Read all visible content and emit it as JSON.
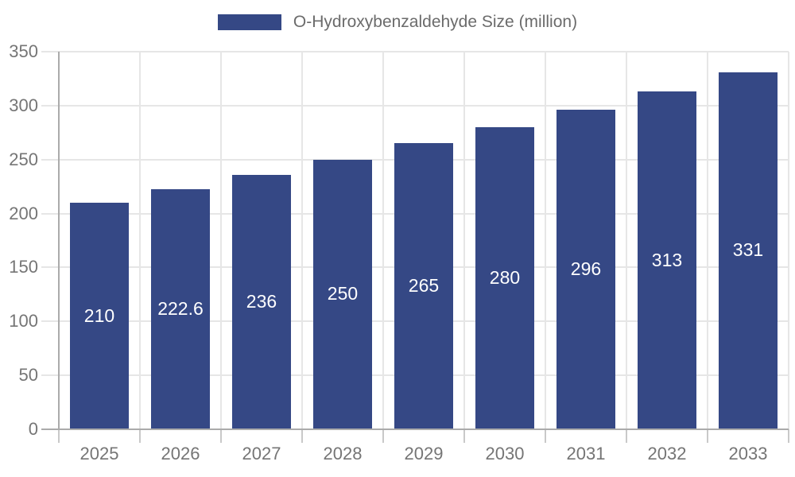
{
  "legend": {
    "label": "O-Hydroxybenzaldehyde Size (million)"
  },
  "chart_data": {
    "type": "bar",
    "title": "O-Hydroxybenzaldehyde Size (million)",
    "categories": [
      "2025",
      "2026",
      "2027",
      "2028",
      "2029",
      "2030",
      "2031",
      "2032",
      "2033"
    ],
    "series": [
      {
        "name": "O-Hydroxybenzaldehyde Size (million)",
        "values": [
          210,
          222.6,
          236,
          250,
          265,
          280,
          296,
          313,
          331
        ]
      }
    ],
    "value_labels": [
      "210",
      "222.6",
      "236",
      "250",
      "265",
      "280",
      "296",
      "313",
      "331"
    ],
    "xlabel": "",
    "ylabel": "",
    "ylim": [
      0,
      350
    ],
    "yticks": [
      0,
      50,
      100,
      150,
      200,
      250,
      300,
      350
    ],
    "grid": true,
    "legend_position": "top",
    "colors": {
      "bar": "#354885",
      "grid": "#E6E6E6",
      "axis": "#ABABAB",
      "tick": "#C9C9C9",
      "tick_label": "#757575",
      "legend_text": "#6B6B6B",
      "value_label": "#FFFFFF",
      "background": "#FFFFFF"
    }
  }
}
